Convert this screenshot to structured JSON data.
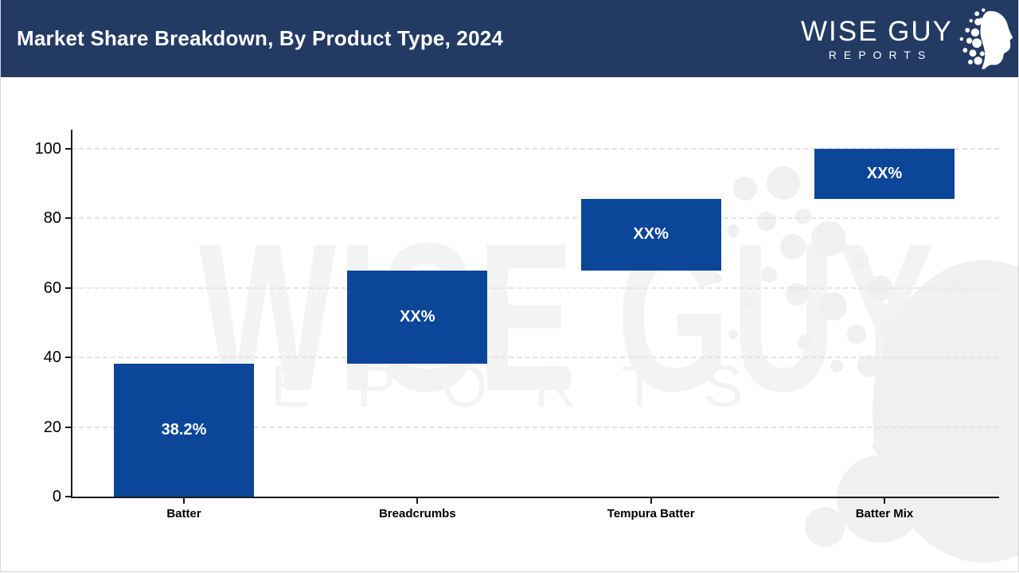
{
  "header": {
    "title": "Market Share Breakdown, By Product Type, 2024",
    "logo": {
      "line1": "WISE GUY",
      "line2": "REPORTS"
    }
  },
  "watermark": {
    "line1": "WISE GUY",
    "line2": "REPORTS"
  },
  "colors": {
    "header_bg": "#233a63",
    "bar": "#0b4699",
    "bar_label": "#ffffff",
    "axis": "#1a1a1a",
    "grid": "#e4e4e4",
    "watermark": "#f3f3f3"
  },
  "chart_data": {
    "type": "bar",
    "subtype": "waterfall-floating-bars",
    "title": "Market Share Breakdown, By Product Type, 2024",
    "xlabel": "",
    "ylabel": "",
    "categories": [
      "Batter",
      "Breadcrumbs",
      "Tempura Batter",
      "Batter Mix"
    ],
    "segments": [
      {
        "category": "Batter",
        "start": 0,
        "end": 38.2,
        "label": "38.2%"
      },
      {
        "category": "Breadcrumbs",
        "start": 38.2,
        "end": 65,
        "label": "XX%"
      },
      {
        "category": "Tempura Batter",
        "start": 65,
        "end": 85.5,
        "label": "XX%"
      },
      {
        "category": "Batter Mix",
        "start": 85.5,
        "end": 100,
        "label": "XX%"
      }
    ],
    "ylim": [
      0,
      105
    ],
    "yticks": [
      0,
      20,
      40,
      60,
      80,
      100
    ],
    "grid": "horizontal-dashed",
    "legend": "none"
  }
}
